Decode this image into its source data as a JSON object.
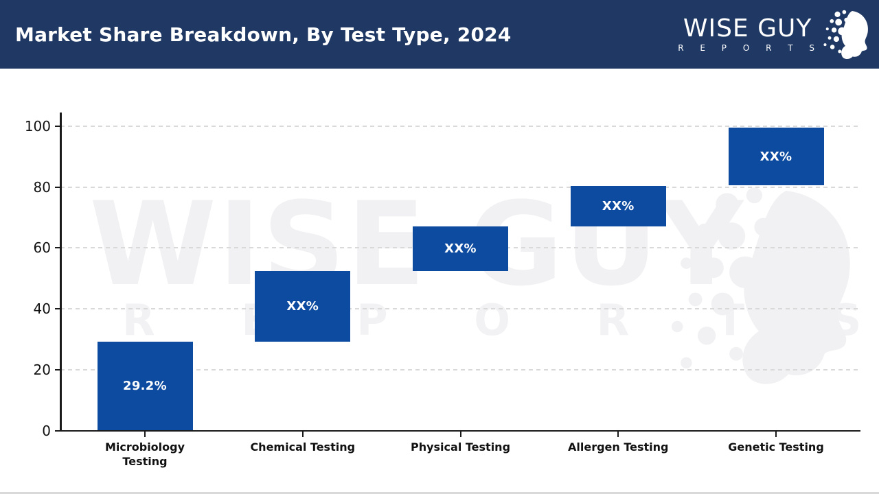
{
  "header": {
    "title": "Market Share Breakdown, By Test Type, 2024",
    "logo": {
      "line1": "WISE GUY",
      "line2": "R E P O R T S"
    }
  },
  "watermark": {
    "line1": "WISE GUY",
    "line2": "R E P O R T S"
  },
  "chart_data": {
    "type": "bar",
    "subtype": "waterfall",
    "title": "Market Share Breakdown, By Test Type, 2024",
    "xlabel": "",
    "ylabel": "",
    "ylim": [
      0,
      104
    ],
    "yticks": [
      0,
      20,
      40,
      60,
      80,
      100
    ],
    "grid": "horizontal-dashed",
    "legend": "none",
    "bar_color": "#0d4ba1",
    "bar_label_color": "#ffffff",
    "categories": [
      "Microbiology Testing",
      "Chemical Testing",
      "Physical Testing",
      "Allergen Testing",
      "Genetic Testing"
    ],
    "bars": [
      {
        "category": "Microbiology Testing",
        "start": 0,
        "end": 29.2,
        "label": "29.2%"
      },
      {
        "category": "Chemical Testing",
        "start": 29.2,
        "end": 52.3,
        "label": "XX%"
      },
      {
        "category": "Physical Testing",
        "start": 52.3,
        "end": 67.1,
        "label": "XX%"
      },
      {
        "category": "Allergen Testing",
        "start": 67.1,
        "end": 80.4,
        "label": "XX%"
      },
      {
        "category": "Genetic Testing",
        "start": 80.6,
        "end": 99.4,
        "label": "XX%"
      }
    ]
  }
}
